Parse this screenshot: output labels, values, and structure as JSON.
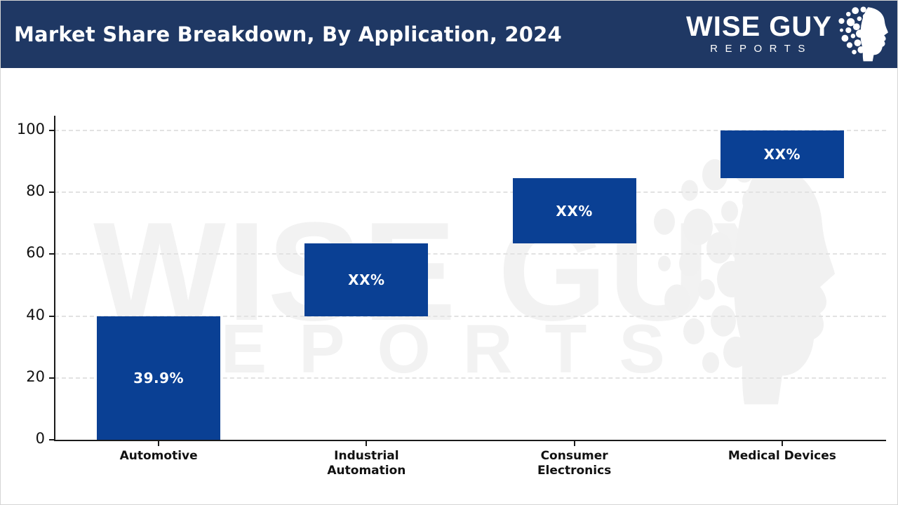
{
  "header": {
    "title": "Market Share Breakdown, By Application, 2024",
    "background_color": "#1f3864",
    "logo": {
      "primary": "WISE GUY",
      "secondary": "REPORTS"
    }
  },
  "watermark": {
    "primary": "WISE GUY",
    "secondary": "REPORTS"
  },
  "chart_data": {
    "type": "bar",
    "variant": "stacked-waterfall",
    "title": "Market Share Breakdown, By Application, 2024",
    "categories": [
      "Automotive",
      "Industrial\nAutomation",
      "Consumer\nElectronics",
      "Medical Devices"
    ],
    "segments": [
      {
        "category": "Automotive",
        "start": 0,
        "end": 39.9,
        "value_label": "39.9%"
      },
      {
        "category": "Industrial Automation",
        "start": 39.9,
        "end": 63.4,
        "value_label": "XX%"
      },
      {
        "category": "Consumer Electronics",
        "start": 63.4,
        "end": 84.5,
        "value_label": "XX%"
      },
      {
        "category": "Medical Devices",
        "start": 84.5,
        "end": 100,
        "value_label": "XX%"
      }
    ],
    "ylim": [
      0,
      100
    ],
    "yticks": [
      0,
      20,
      40,
      60,
      80,
      100
    ],
    "grid": {
      "horizontal": true,
      "style": "dashed",
      "color": "#e2e2e2"
    },
    "bar_color": "#0a4094",
    "bar_label_color": "#ffffff",
    "axis_color": "#1a1a1a",
    "legend": "none"
  }
}
